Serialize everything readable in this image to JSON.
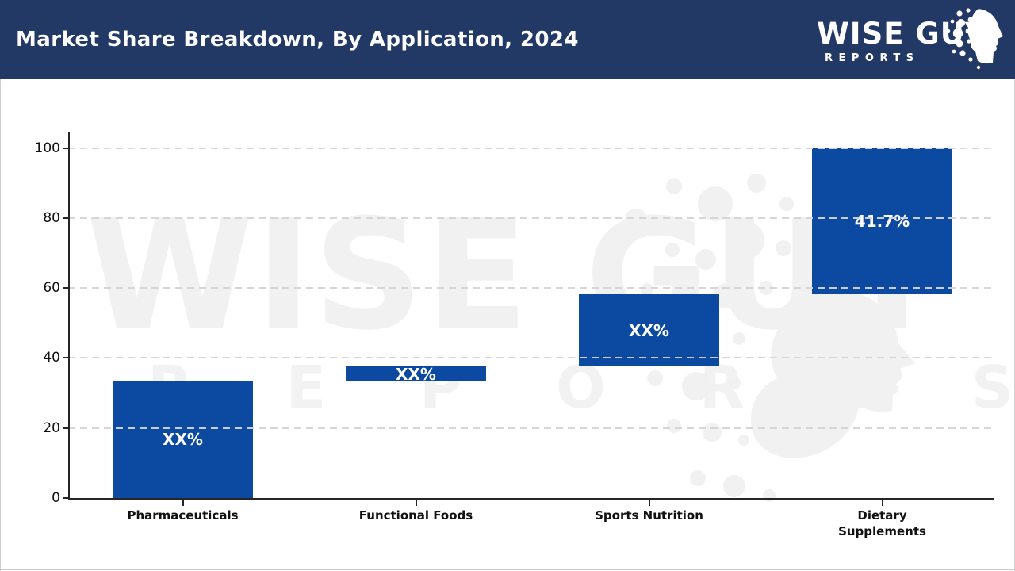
{
  "header": {
    "title": "Market Share Breakdown, By Application, 2024",
    "logo": {
      "line1": "WISE GUY",
      "line2": "R E P O R T S"
    }
  },
  "watermark": {
    "line1": "WISE GUY",
    "line2": "R E P O R T S"
  },
  "chart_data": {
    "type": "bar",
    "subtype": "waterfall",
    "title": "Market Share Breakdown, By Application, 2024",
    "categories": [
      "Pharmaceuticals",
      "Functional Foods",
      "Sports Nutrition",
      "Dietary Supplements"
    ],
    "segments": [
      {
        "category": "Pharmaceuticals",
        "start": 0,
        "end": 33.3,
        "label": "XX%"
      },
      {
        "category": "Functional Foods",
        "start": 33.3,
        "end": 37.5,
        "label": "XX%"
      },
      {
        "category": "Sports Nutrition",
        "start": 37.5,
        "end": 58.3,
        "label": "XX%"
      },
      {
        "category": "Dietary Supplements",
        "start": 58.3,
        "end": 100,
        "label": "41.7%"
      }
    ],
    "yticks": [
      0,
      20,
      40,
      60,
      80,
      100
    ],
    "ylim": [
      0,
      100
    ],
    "grid": "dashed-horizontal",
    "legend": "none",
    "bar_color": "#0B4AA0"
  },
  "colors": {
    "header_bg": "#223865",
    "bar": "#0B4AA0",
    "grid": "#D9D9D9",
    "axis": "#262626",
    "watermark": "#F1F1F2"
  }
}
